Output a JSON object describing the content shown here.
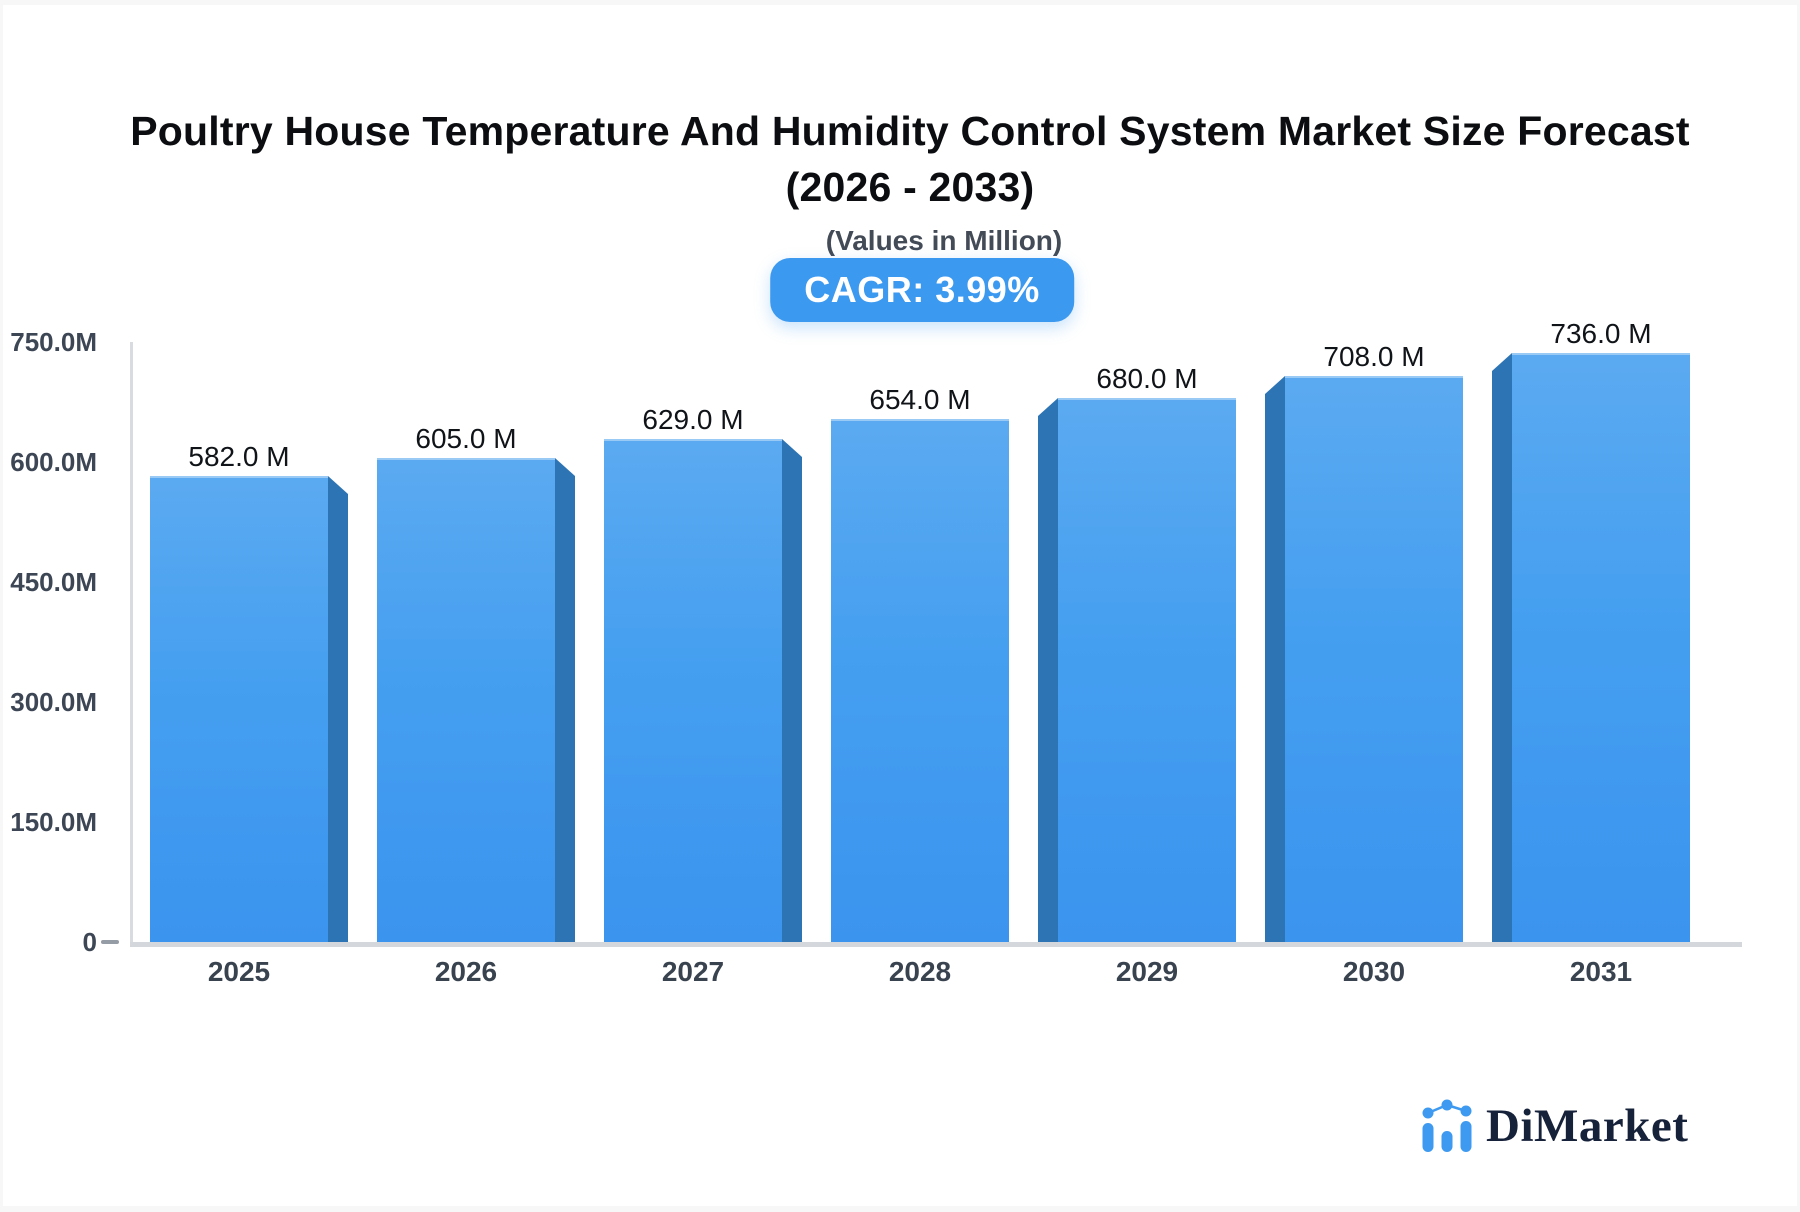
{
  "header": {
    "title_line1": "Poultry House Temperature And Humidity Control System Market Size Forecast",
    "title_line2": "(2026 - 2033)",
    "subtitle": "(Values in Million)",
    "cagr_badge": "CAGR: 3.99%"
  },
  "chart_data": {
    "type": "bar",
    "title": "Poultry House Temperature And Humidity Control System Market Size Forecast (2026 - 2033)",
    "subtitle": "(Values in Million)",
    "categories": [
      "2025",
      "2026",
      "2027",
      "2028",
      "2029",
      "2030",
      "2031"
    ],
    "values": [
      582,
      605,
      629,
      654,
      680,
      708,
      736
    ],
    "value_labels": [
      "582.0 M",
      "605.0 M",
      "629.0 M",
      "654.0 M",
      "680.0 M",
      "708.0 M",
      "736.0 M"
    ],
    "unit": "Million",
    "cagr_percent": 3.99,
    "y_ticks": [
      {
        "label": "750.0M",
        "value": 750
      },
      {
        "label": "600.0M",
        "value": 600
      },
      {
        "label": "450.0M",
        "value": 450
      },
      {
        "label": "300.0M",
        "value": 300
      },
      {
        "label": "150.0M",
        "value": 150
      },
      {
        "label": "0",
        "value": 0
      }
    ],
    "ylim": [
      0,
      750
    ],
    "grid": false,
    "legend": false,
    "colors": {
      "bar_face_top": "#5baaf1",
      "bar_face_bottom": "#3b94ee",
      "bar_side": "#2d74b4",
      "badge": "#3c99f0",
      "axis": "#d4d7dc",
      "tick_text": "#3c4654"
    }
  },
  "footer": {
    "brand": "DiMarket",
    "brand_icon": "bar-chart-logo-icon"
  }
}
